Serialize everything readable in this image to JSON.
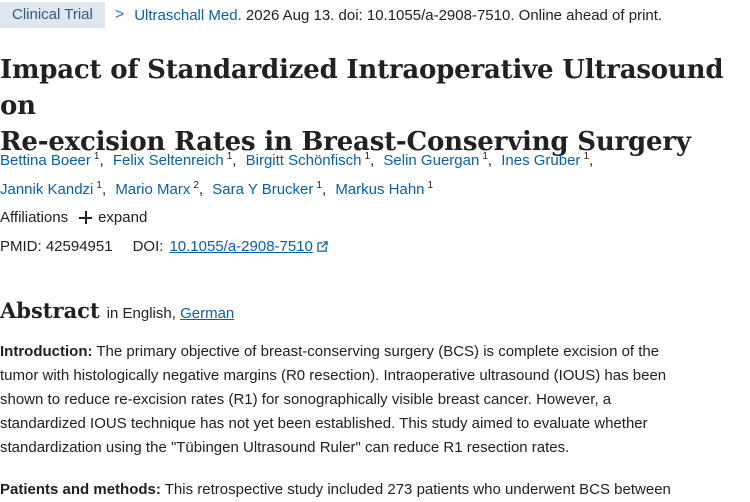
{
  "header": {
    "badge": "Clinical Trial",
    "separator": ">",
    "journal": "Ultraschall Med.",
    "citation": "2026 Aug 13. doi: 10.1055/a-2908-7510. Online ahead of print."
  },
  "title_line1": "Impact of Standardized Intraoperative Ultrasound on",
  "title_line2": "Re-excision Rates in Breast-Conserving Surgery",
  "authors": [
    {
      "name": "Bettina Boeer",
      "aff": "1"
    },
    {
      "name": "Felix Seltenreich",
      "aff": "1"
    },
    {
      "name": "Birgitt Schönfisch",
      "aff": "1"
    },
    {
      "name": "Selin Guergan",
      "aff": "1"
    },
    {
      "name": "Ines Gruber",
      "aff": "1"
    },
    {
      "name": "Jannik Kandzi",
      "aff": "1"
    },
    {
      "name": "Mario Marx",
      "aff": "2"
    },
    {
      "name": "Sara Y Brucker",
      "aff": "1"
    },
    {
      "name": "Markus Hahn",
      "aff": "1"
    }
  ],
  "affiliations": {
    "label": "Affiliations",
    "expand": "expand"
  },
  "ids": {
    "pmid_label": "PMID:",
    "pmid": "42594951",
    "doi_label": "DOI:",
    "doi": "10.1055/a-2908-7510"
  },
  "abstract": {
    "heading": "Abstract",
    "lang_prefix": "in English,",
    "lang_alt": "German",
    "intro_label": "Introduction:",
    "intro_line1": "The primary objective of breast-conserving surgery (BCS) is complete excision of the",
    "intro_line2": "tumor with histologically negative margins (R0 resection). Intraoperative ultrasound (IOUS) has been",
    "intro_line3": "shown to reduce re-excision rates (R1) for sonographically visible breast cancer. However, a",
    "intro_line4": "standardized IOUS technique has not yet been established. This study aimed to evaluate whether",
    "intro_line5": "standardization using the \"Tübingen Ultrasound Ruler\" can reduce R1 resection rates.",
    "methods_label": "Patients and methods:",
    "methods_line1": "This retrospective study included 273 patients who underwent BCS between"
  }
}
